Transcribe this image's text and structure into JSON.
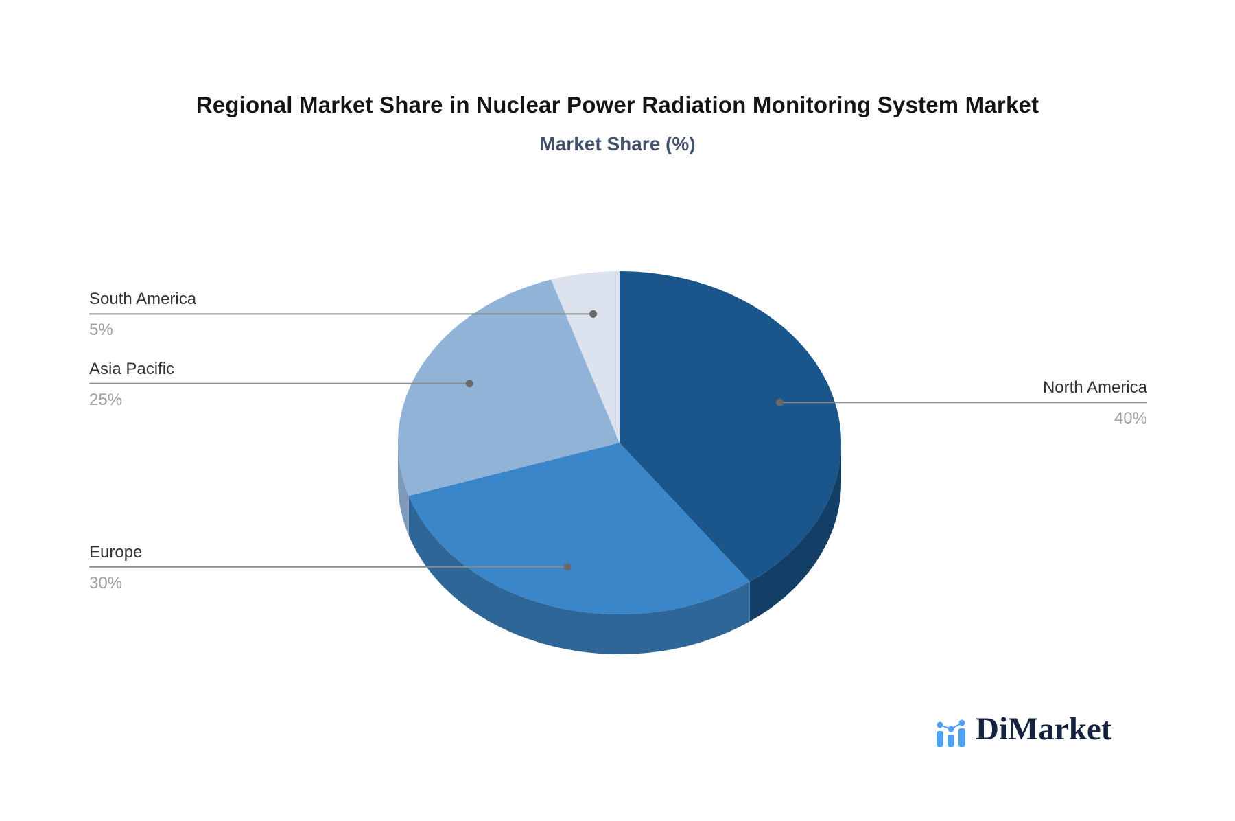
{
  "title": "Regional Market Share in Nuclear Power Radiation Monitoring System Market",
  "subtitle": "Market Share (%)",
  "chart_data": {
    "type": "pie",
    "title": "Regional Market Share in Nuclear Power Radiation Monitoring System Market",
    "subtitle": "Market Share (%)",
    "categories": [
      "North America",
      "Europe",
      "Asia Pacific",
      "South America"
    ],
    "values": [
      40,
      30,
      25,
      5
    ],
    "unit": "%",
    "pct_labels": [
      "40%",
      "30%",
      "25%",
      "5%"
    ],
    "colors": [
      "#1A568C",
      "#3A86C8",
      "#92B3D8",
      "#DCE3EF"
    ],
    "side_colors": [
      "#133E66",
      "#2E6697",
      "#7E99BA",
      "#B9C4D6"
    ],
    "start_angle_deg": 0,
    "direction": "clockwise",
    "effect_3d": true,
    "legend_position": "callout-labels",
    "grid": false,
    "leader_line_color": "#8A8A8A",
    "leader_dot_color": "#696969",
    "label_color": "#333333",
    "pct_color": "#9EA0A3"
  },
  "logo": {
    "text": "DiMarket",
    "icon": "bar-chart-trend-icon",
    "icon_color": "#4FA1F2",
    "text_color": "#16233E"
  }
}
